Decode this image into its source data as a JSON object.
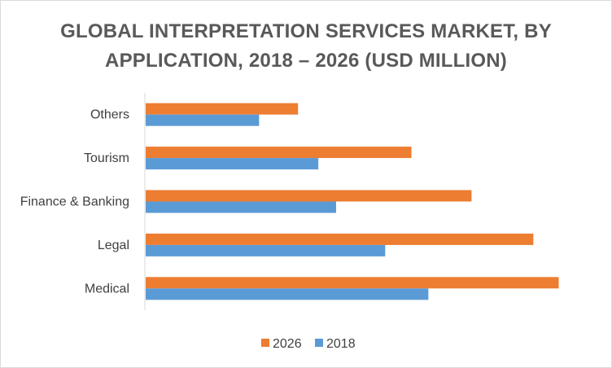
{
  "chart_data": {
    "type": "bar",
    "orientation": "horizontal",
    "title_lines": [
      "GLOBAL INTERPRETATION SERVICES MARKET, BY",
      "APPLICATION, 2018 – 2026 (USD MILLION)"
    ],
    "categories": [
      "Others",
      "Tourism",
      "Finance & Banking",
      "Legal",
      "Medical"
    ],
    "series": [
      {
        "name": "2026",
        "color": "#ed7d31",
        "values": [
          180,
          314,
          385,
          458,
          488
        ]
      },
      {
        "name": "2018",
        "color": "#5b9bd5",
        "values": [
          134,
          204,
          225,
          283,
          334
        ]
      }
    ],
    "xlim": [
      0,
      500
    ],
    "x_axis_labels_shown": false,
    "grid": false,
    "legend_position": "bottom"
  }
}
